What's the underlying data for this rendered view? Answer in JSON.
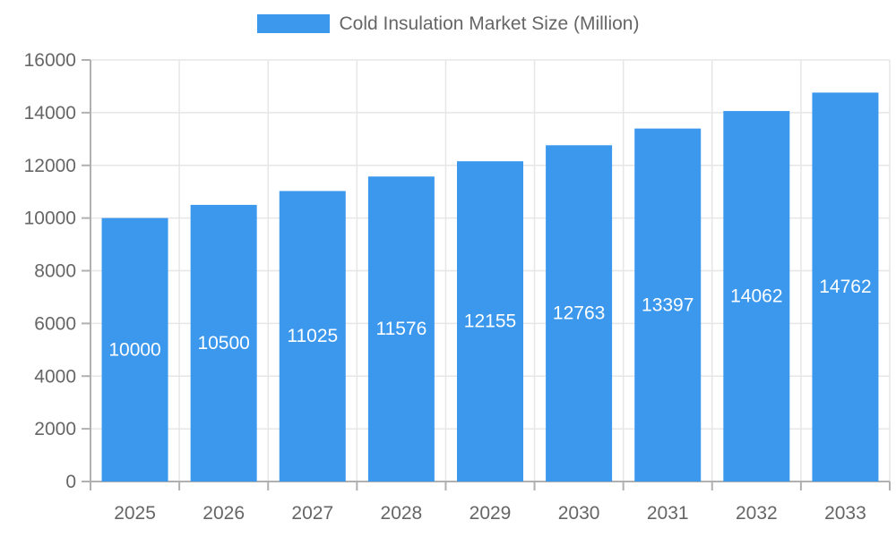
{
  "chart_data": {
    "type": "bar",
    "title": "Cold Insulation Market Size (Million)",
    "legend": {
      "position": "top",
      "label": "Cold Insulation Market Size (Million)"
    },
    "categories": [
      "2025",
      "2026",
      "2027",
      "2028",
      "2029",
      "2030",
      "2031",
      "2032",
      "2033"
    ],
    "series": [
      {
        "name": "Cold Insulation Market Size (Million)",
        "values": [
          10000,
          10500,
          11025,
          11576,
          12155,
          12763,
          13397,
          14062,
          14762
        ]
      }
    ],
    "xlabel": "",
    "ylabel": "",
    "ylim": [
      0,
      16000
    ],
    "yticks": [
      0,
      2000,
      4000,
      6000,
      8000,
      10000,
      12000,
      14000,
      16000
    ],
    "grid": true,
    "bar_value_labels_shown": true,
    "colors": {
      "bar": "#3b98ed",
      "bar_label": "#ffffff",
      "axis_text": "#666666",
      "grid_line": "#e6e6e6",
      "axis_line": "#b0b0b0",
      "background": "#ffffff"
    }
  }
}
